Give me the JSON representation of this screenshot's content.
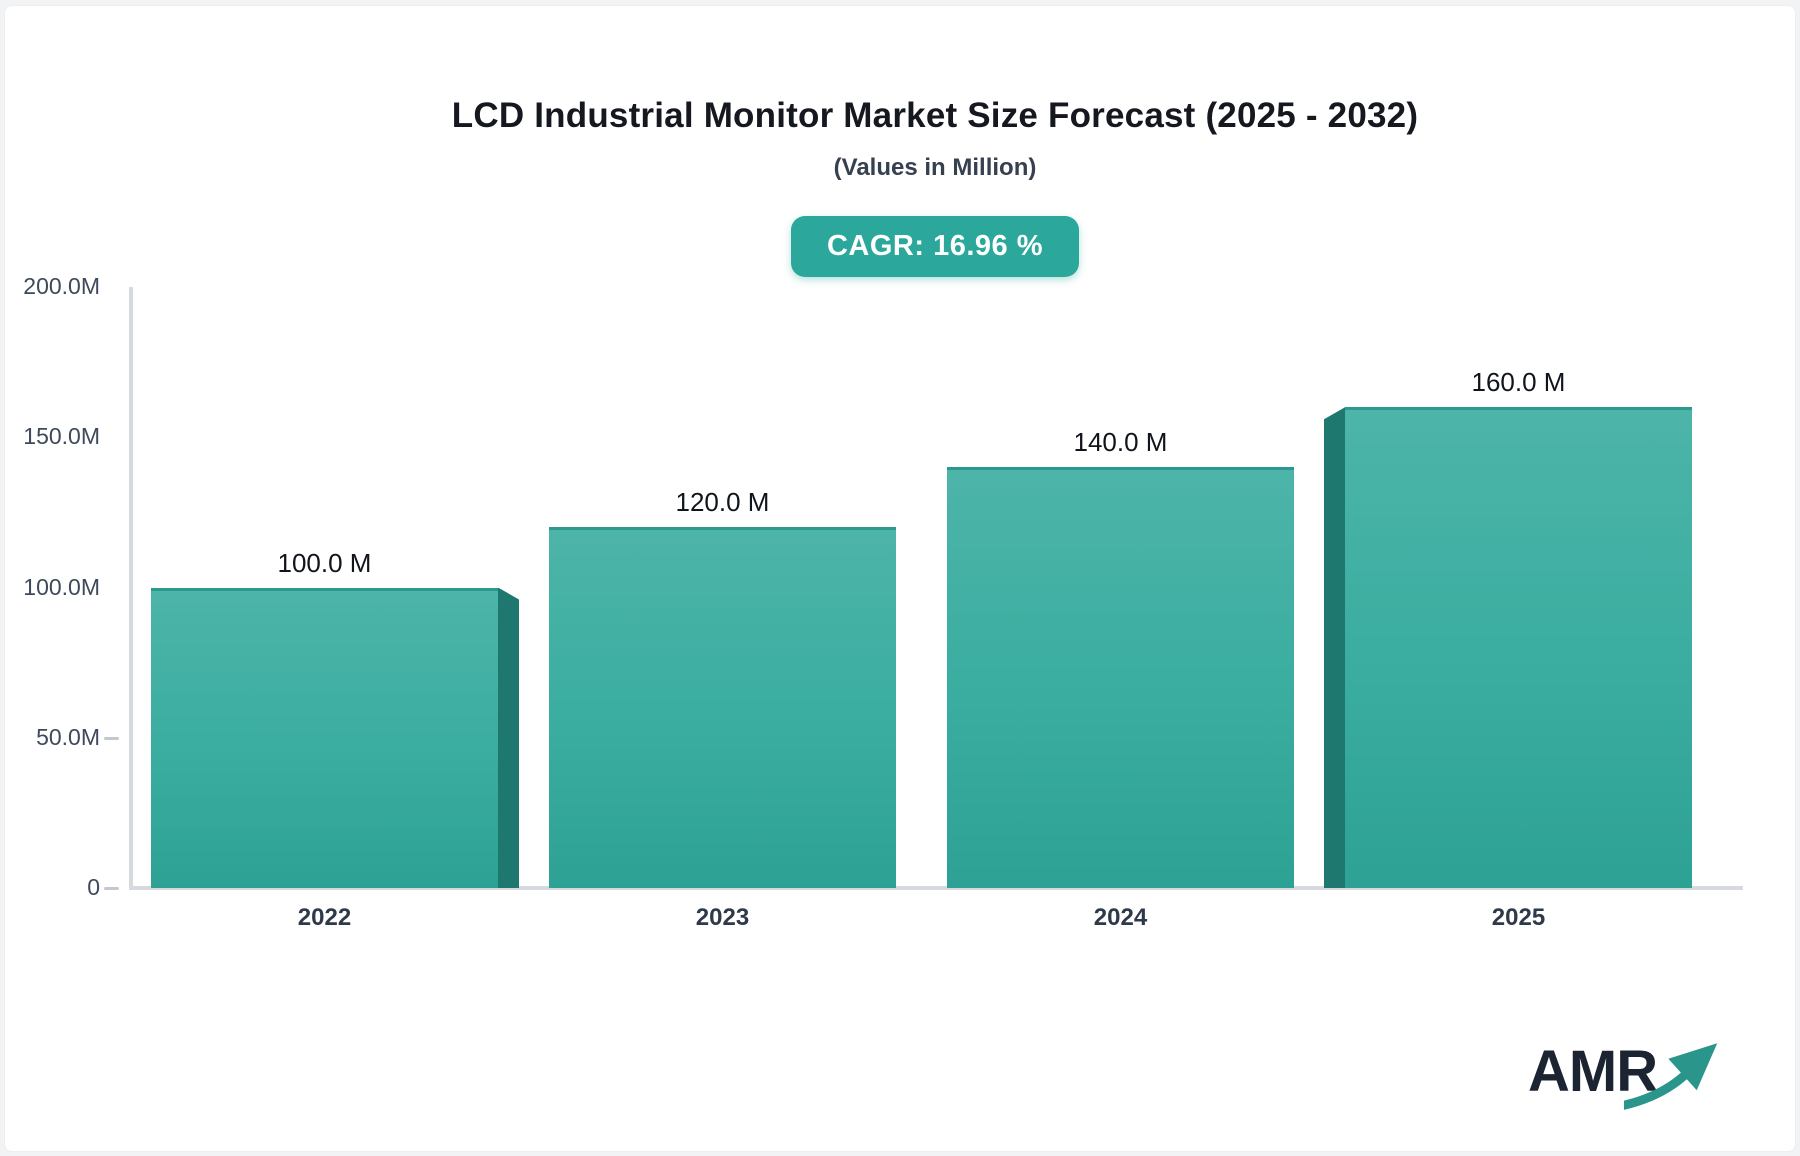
{
  "chart_data": {
    "type": "bar",
    "title": "LCD Industrial Monitor Market Size Forecast (2025 - 2032)",
    "subtitle": "(Values in Million)",
    "cagr_badge": "CAGR: 16.96 %",
    "categories": [
      "2022",
      "2023",
      "2024",
      "2025"
    ],
    "values": [
      100.0,
      120.0,
      140.0,
      160.0
    ],
    "value_labels": [
      "100.0 M",
      "120.0 M",
      "140.0 M",
      "160.0 M"
    ],
    "unit": "Million",
    "xlabel": "",
    "ylabel": "",
    "ylim": [
      0,
      200
    ],
    "y_ticks": [
      {
        "label": "200.0M",
        "value": 200,
        "dash": false
      },
      {
        "label": "150.0M",
        "value": 150,
        "dash": false
      },
      {
        "label": "100.0M",
        "value": 100,
        "dash": false
      },
      {
        "label": "50.0M",
        "value": 50,
        "dash": true
      },
      {
        "label": "0",
        "value": 0,
        "dash": true
      }
    ],
    "grid": false,
    "legend": null,
    "colors": {
      "bar_top": "#4db4a9",
      "bar_bottom": "#2ea195",
      "bar_side_3d": "#1f786f",
      "badge_background": "#2ba89b",
      "axis_line": "#d6d9de",
      "title_text": "#15181f",
      "label_text": "#3e4a5b"
    }
  },
  "logo": {
    "text": "AMR",
    "text_color": "#1b2430",
    "arrow_color": "#2a968b"
  }
}
